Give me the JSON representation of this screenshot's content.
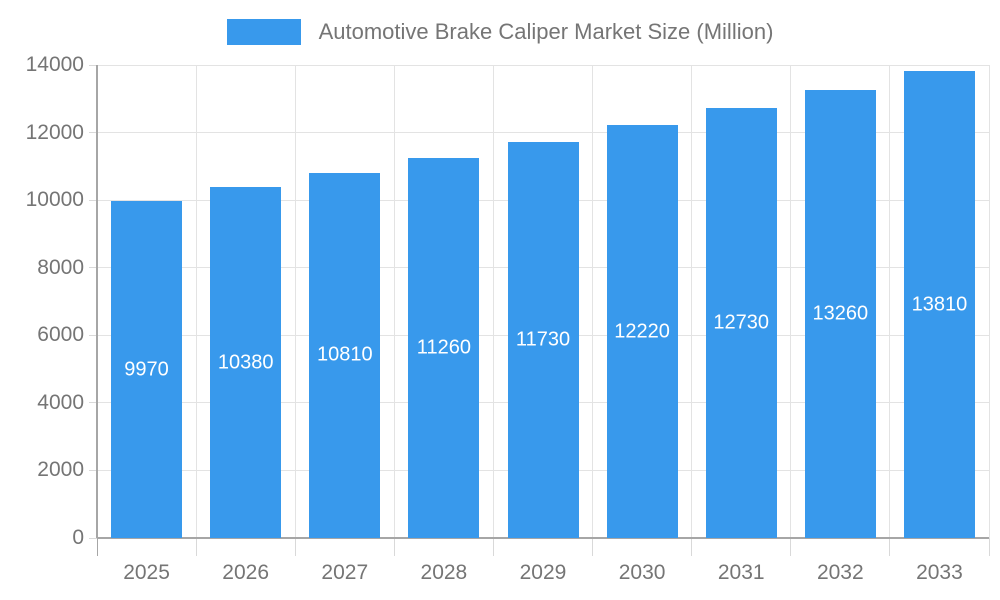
{
  "chart_data": {
    "type": "bar",
    "title": "Automotive Brake Caliper Market Size (Million)",
    "categories": [
      "2025",
      "2026",
      "2027",
      "2028",
      "2029",
      "2030",
      "2031",
      "2032",
      "2033"
    ],
    "values": [
      9970,
      10380,
      10810,
      11260,
      11730,
      12220,
      12730,
      13260,
      13810
    ],
    "series_name": "Automotive Brake Caliper Market Size (Million)",
    "xlabel": "",
    "ylabel": "",
    "ylim": [
      0,
      14000
    ],
    "yticks": [
      0,
      2000,
      4000,
      6000,
      8000,
      10000,
      12000,
      14000
    ],
    "grid": true,
    "legend_position": "top",
    "bar_labels_inside": true,
    "style": {
      "bar_color": "#3899EC",
      "bar_label_color": "#FFFFFF",
      "axis_line_color": "#A6A6A6",
      "grid_color": "#E3E3E3",
      "tick_color": "#D9D9D9",
      "text_color": "#757575",
      "background": "#FFFFFF"
    }
  }
}
